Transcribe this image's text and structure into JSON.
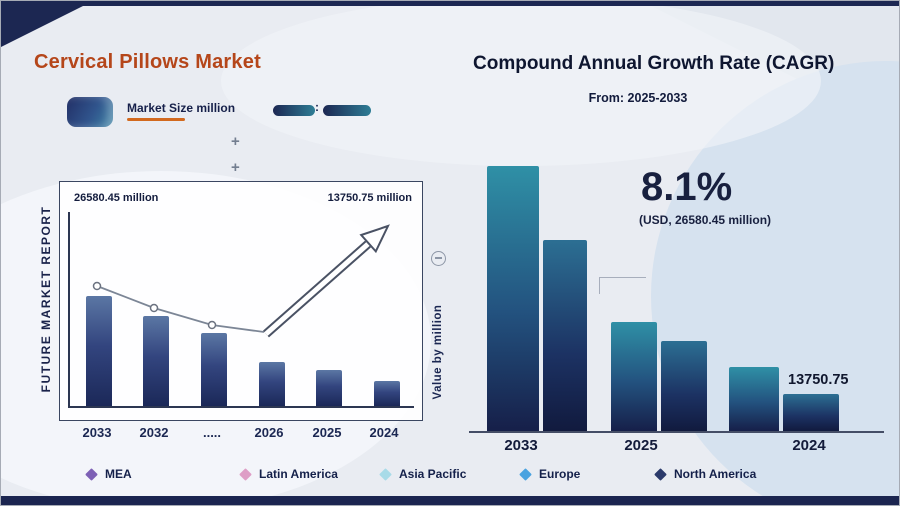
{
  "page": {
    "left": {
      "title": "Cervical Pillows Market",
      "legend_label": "Market Size million",
      "pill_separator": ":",
      "side_label": "FUTURE MARKET REPORT",
      "annotation_left": "26580.45 million",
      "annotation_right": "13750.75 million"
    },
    "right": {
      "title": "Compound Annual Growth Rate (CAGR)",
      "subtitle": "From: 2025-2033",
      "cagr_value": "8.1%",
      "cagr_note": "(USD, 26580.45 million)",
      "ylabel": "Value by million",
      "annotation": "13750.75"
    },
    "legend": {
      "items": [
        {
          "label": "MEA",
          "color": "#7d60b5"
        },
        {
          "label": "Latin America",
          "color": "#de9ec6"
        },
        {
          "label": "Asia Pacific",
          "color": "#a8dbe8"
        },
        {
          "label": "Europe",
          "color": "#4aa3e0"
        },
        {
          "label": "North America",
          "color": "#2b3a6b"
        }
      ]
    },
    "colors": {
      "navy": "#1c2752",
      "teal": "#2a8aa0",
      "accent_orange": "#b5461a",
      "background": "#e9ecf2"
    }
  },
  "chart_data": [
    {
      "type": "bar",
      "title": "Cervical Pillows Market - Market Size million",
      "legend": [
        "Market Size million"
      ],
      "categories": [
        "2033",
        "2032",
        ".....",
        "2026",
        "2025",
        "2024"
      ],
      "values": [
        26580.45,
        23200,
        20300,
        16400,
        15000,
        13750.75
      ],
      "values_note": "2033 and 2024 endpoints labeled on chart (26580.45 / 13750.75 million); intermediate years estimated from bar heights",
      "heights_pct": [
        100,
        82,
        66,
        40,
        33,
        23
      ],
      "line_overlay": "declining marker line over first bars with large upward trend arrow",
      "annotations": [
        "26580.45 million",
        "13750.75 million"
      ],
      "xlabel": "",
      "ylabel": "",
      "grid": false,
      "legend_position": "top-left"
    },
    {
      "type": "bar",
      "title": "Compound Annual Growth Rate (CAGR) From: 2025-2033",
      "categories": [
        "2033",
        "2025",
        "2024"
      ],
      "series": [
        {
          "name": "primary",
          "heights_pct": [
            100,
            41,
            24
          ],
          "values": [
            26580.45,
            15000,
            13750.75
          ]
        },
        {
          "name": "secondary",
          "heights_pct": [
            72,
            34,
            14
          ]
        }
      ],
      "cagr": "8.1%",
      "cagr_note": "(USD, 26580.45 million)",
      "annotation": "13750.75",
      "xlabel": "",
      "ylabel": "Value by million",
      "grid": false
    }
  ]
}
